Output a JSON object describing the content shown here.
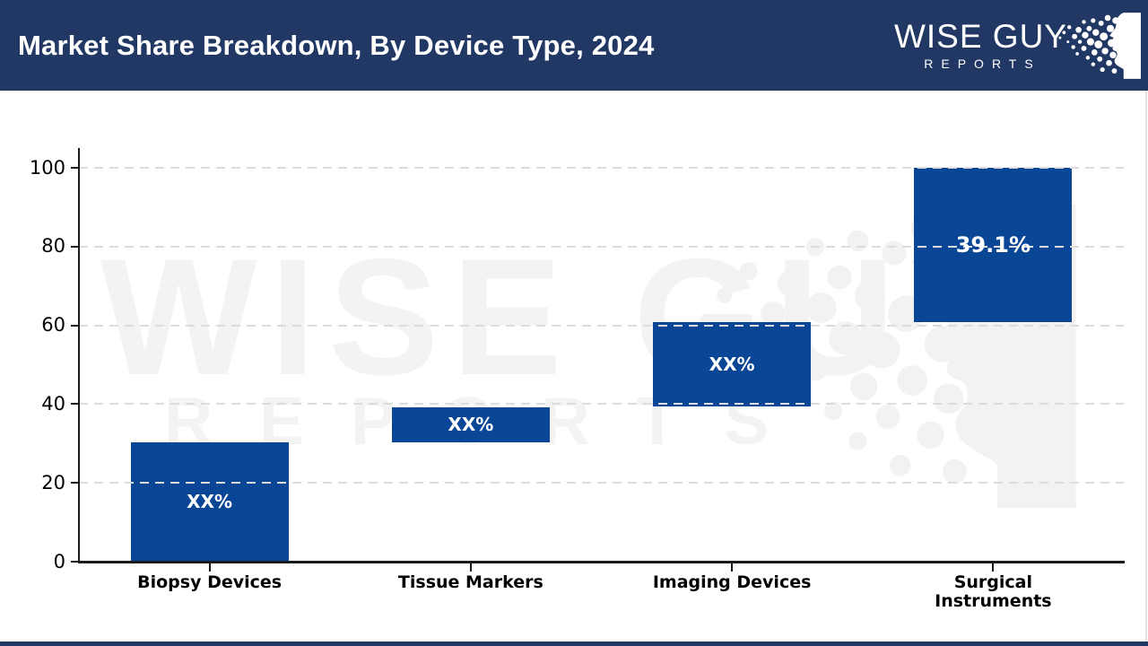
{
  "header": {
    "title": "Market Share Breakdown, By Device Type, 2024",
    "logo": {
      "line1": "WISE GUY",
      "line2": "REPORTS"
    }
  },
  "watermark": {
    "line1": "WISE GUY",
    "line2": "REPORTS"
  },
  "theme": {
    "header_bg": "#223864",
    "bar_blue": "#0a4696",
    "grid_color": "#dcdcdc",
    "axis_color": "#1a1a1a",
    "watermark_gray": "#f3f3f3",
    "bar_label_color": "#ffffff"
  },
  "chart_data": {
    "type": "bar",
    "subtype": "waterfall-floating-segments",
    "title": "Market Share Breakdown, By Device Type, 2024",
    "categories": [
      "Biopsy Devices",
      "Tissue Markers",
      "Imaging Devices",
      "Surgical Instruments"
    ],
    "segments": [
      {
        "category": "Biopsy Devices",
        "start": 0,
        "end": 30.3,
        "label": "XX%"
      },
      {
        "category": "Tissue Markers",
        "start": 30.4,
        "end": 39.1,
        "label": "XX%"
      },
      {
        "category": "Imaging Devices",
        "start": 39.4,
        "end": 60.9,
        "label": "XX%"
      },
      {
        "category": "Surgical Instruments",
        "start": 60.9,
        "end": 100,
        "label": "39.1%"
      }
    ],
    "xlabel": "",
    "ylabel": "",
    "ylim": [
      0,
      100
    ],
    "yticks": [
      0,
      20,
      40,
      60,
      80,
      100
    ],
    "grid": "horizontal-dashed-over-bars",
    "legend": "none"
  }
}
